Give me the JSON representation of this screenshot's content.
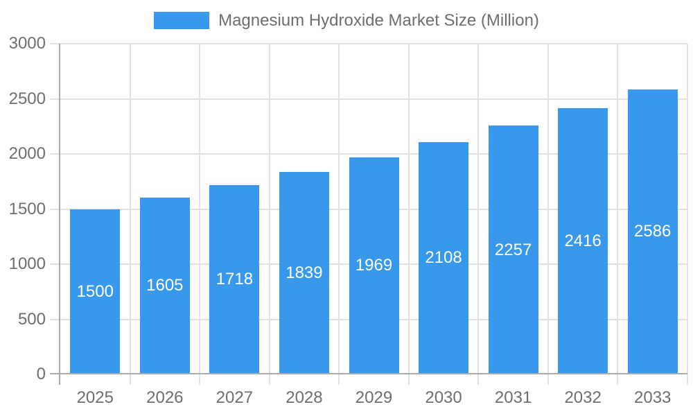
{
  "colors": {
    "bar": "#3899ec",
    "grid": "#e1e1e1",
    "axis": "#ababab",
    "text": "#6e6e6e",
    "bar_label": "#ffffff",
    "background": "#ffffff"
  },
  "legend": {
    "label": "Magnesium Hydroxide Market Size (Million)",
    "position": "top"
  },
  "chart_data": {
    "type": "bar",
    "title": "",
    "xlabel": "",
    "ylabel": "",
    "categories": [
      "2025",
      "2026",
      "2027",
      "2028",
      "2029",
      "2030",
      "2031",
      "2032",
      "2033"
    ],
    "series": [
      {
        "name": "Magnesium Hydroxide Market Size (Million)",
        "color": "#3899ec",
        "values": [
          1500,
          1605,
          1718,
          1839,
          1969,
          2108,
          2257,
          2416,
          2586
        ]
      }
    ],
    "bar_value_labels": [
      "1500",
      "1605",
      "1718",
      "1839",
      "1969",
      "2108",
      "2257",
      "2416",
      "2586"
    ],
    "ylim": [
      0,
      3000
    ],
    "ytick_step": 500,
    "ytick_labels": [
      "0",
      "500",
      "1000",
      "1500",
      "2000",
      "2500",
      "3000"
    ],
    "grid": true,
    "legend_position": "top",
    "value_labels_inside_bars": true
  }
}
